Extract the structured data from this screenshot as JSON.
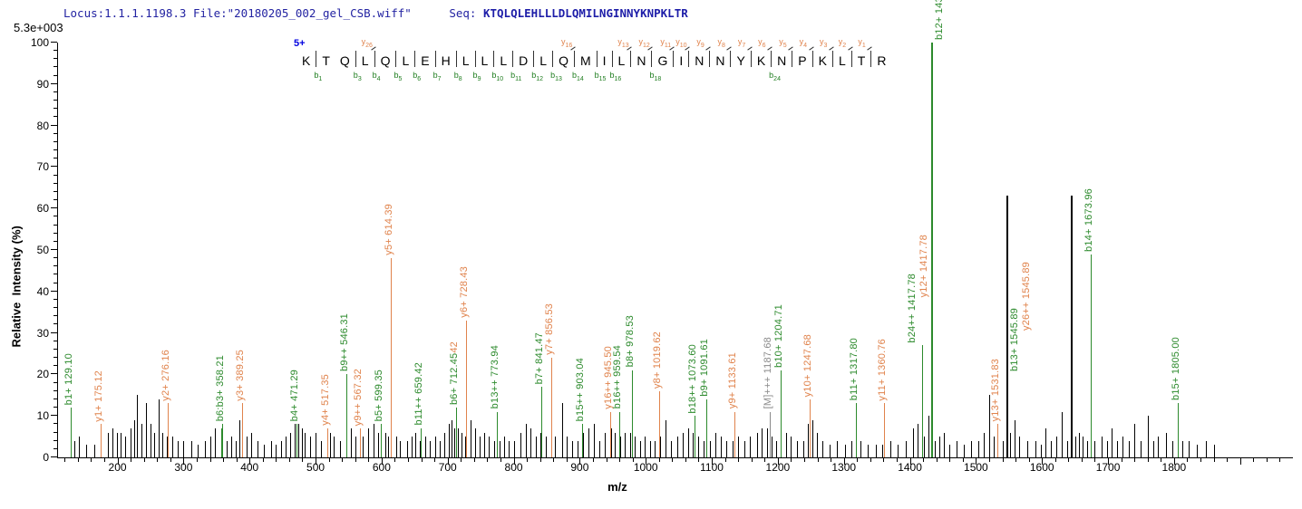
{
  "header": {
    "locus_file": "Locus:1.1.1.1198.3 File:\"20180205_002_gel_CSB.wiff\"",
    "seq_label": "Seq:",
    "seq_value": "KTQLQLEHLLLDLQMILNGINNYKNPKLTR",
    "intensity_scale": "5.3e+003"
  },
  "sequence_panel": {
    "charge": "5+",
    "residues": "KTQLQLEHLLLDLQMILNGINNYKNPKLTR",
    "boundaries": [
      {
        "after": 1,
        "b": "b1"
      },
      {
        "after": 3,
        "b": "b3"
      },
      {
        "after": 4,
        "b": "b4",
        "y": "y26"
      },
      {
        "after": 5,
        "b": "b5"
      },
      {
        "after": 6,
        "b": "b6"
      },
      {
        "after": 7,
        "b": "b7"
      },
      {
        "after": 8,
        "b": "b8"
      },
      {
        "after": 9,
        "b": "b9"
      },
      {
        "after": 10,
        "b": "b10"
      },
      {
        "after": 11,
        "b": "b11"
      },
      {
        "after": 12,
        "b": "b12"
      },
      {
        "after": 13,
        "b": "b13"
      },
      {
        "after": 14,
        "b": "b14",
        "y": "y16"
      },
      {
        "after": 15,
        "b": "b15"
      },
      {
        "after": 16,
        "b": "b16"
      },
      {
        "after": 17,
        "y": "y13"
      },
      {
        "after": 18,
        "b": "b18",
        "y": "y12"
      },
      {
        "after": 19,
        "y": "y11"
      },
      {
        "after": 20,
        "y": "y10"
      },
      {
        "after": 21,
        "y": "y9"
      },
      {
        "after": 22,
        "y": "y8"
      },
      {
        "after": 23,
        "y": "y7"
      },
      {
        "after": 24,
        "b": "b24",
        "y": "y6"
      },
      {
        "after": 25,
        "y": "y5"
      },
      {
        "after": 26,
        "y": "y4"
      },
      {
        "after": 27,
        "y": "y3"
      },
      {
        "after": 28,
        "y": "y2"
      },
      {
        "after": 29,
        "y": "y1"
      }
    ]
  },
  "chart_data": {
    "type": "bar",
    "subtype": "ms2-fragmentation-spectrum",
    "xlabel": "m/z",
    "ylabel": "Relative  Intensity (%)",
    "intensity_scale_note": "5.3e+003",
    "xlim": [
      110,
      1980
    ],
    "ylim": [
      0,
      100
    ],
    "x_major_step": 100,
    "x_minor_step": 20,
    "x_label_min": 200,
    "x_label_max": 1800,
    "y_major_step": 10,
    "y_minor_step": 2,
    "grid": false,
    "colors": {
      "b": "#2c8a2c",
      "y": "#e0834c",
      "gray": "#8a8a8a",
      "black": "#000000"
    },
    "labeled_peaks": [
      {
        "mz": 129.1,
        "intensity": 12,
        "color": "b",
        "labels": [
          {
            "text": "b1+ 129.10",
            "color": "b"
          }
        ]
      },
      {
        "mz": 175.12,
        "intensity": 8,
        "color": "y",
        "labels": [
          {
            "text": "y1+ 175.12",
            "color": "y"
          }
        ]
      },
      {
        "mz": 276.16,
        "intensity": 13,
        "color": "y",
        "labels": [
          {
            "text": "y2+ 276.16",
            "color": "y"
          }
        ]
      },
      {
        "mz": 356.73,
        "intensity": 7,
        "color": "b",
        "labels": []
      },
      {
        "mz": 358.21,
        "intensity": 8,
        "color": "b",
        "labels": [
          {
            "text": "b6:b3+ 358.21",
            "color": "b"
          }
        ]
      },
      {
        "mz": 389.25,
        "intensity": 13,
        "color": "y",
        "labels": [
          {
            "text": "y3+ 389.25",
            "color": "y"
          }
        ]
      },
      {
        "mz": 471.29,
        "intensity": 8,
        "color": "b",
        "labels": [
          {
            "text": "b4+ 471.29",
            "color": "b"
          }
        ]
      },
      {
        "mz": 517.35,
        "intensity": 7,
        "color": "y",
        "labels": [
          {
            "text": "y4+ 517.35",
            "color": "y"
          }
        ]
      },
      {
        "mz": 546.31,
        "intensity": 20,
        "color": "b",
        "labels": [
          {
            "text": "b9++ 546.31",
            "color": "b"
          }
        ]
      },
      {
        "mz": 567.32,
        "intensity": 7,
        "color": "y",
        "labels": [
          {
            "text": "y9++ 567.32",
            "color": "y"
          }
        ]
      },
      {
        "mz": 599.35,
        "intensity": 8,
        "color": "b",
        "labels": [
          {
            "text": "b5+ 599.35",
            "color": "b"
          }
        ]
      },
      {
        "mz": 614.39,
        "intensity": 48,
        "color": "y",
        "labels": [
          {
            "text": "y5+ 614.39",
            "color": "y"
          }
        ]
      },
      {
        "mz": 659.42,
        "intensity": 7,
        "color": "b",
        "labels": [
          {
            "text": "b11++ 659.42",
            "color": "b"
          }
        ]
      },
      {
        "mz": 712.45,
        "intensity": 12,
        "color": "b",
        "labels": [
          {
            "text": "b6+ 712.45",
            "color": "b",
            "suffix": "42",
            "suffix_color": "y"
          }
        ]
      },
      {
        "mz": 728.43,
        "intensity": 33,
        "color": "y",
        "labels": [
          {
            "text": "y6+ 728.43",
            "color": "y"
          }
        ]
      },
      {
        "mz": 773.94,
        "intensity": 11,
        "color": "b",
        "labels": [
          {
            "text": "b13++ 773.94",
            "color": "b"
          }
        ]
      },
      {
        "mz": 841.47,
        "intensity": 17,
        "color": "b",
        "labels": [
          {
            "text": "b7+ 841.47",
            "color": "b"
          }
        ]
      },
      {
        "mz": 856.53,
        "intensity": 24,
        "color": "y",
        "labels": [
          {
            "text": "y7+ 856.53",
            "color": "y"
          }
        ]
      },
      {
        "mz": 903.04,
        "intensity": 8,
        "color": "b",
        "labels": [
          {
            "text": "b15++ 903.04",
            "color": "b"
          }
        ]
      },
      {
        "mz": 945.5,
        "intensity": 11,
        "color": "y",
        "labels": [
          {
            "text": "y16++ 945.50",
            "color": "y"
          }
        ]
      },
      {
        "mz": 959.54,
        "intensity": 11,
        "color": "b",
        "labels": [
          {
            "text": "b16++ 959.54",
            "color": "b"
          }
        ]
      },
      {
        "mz": 978.53,
        "intensity": 21,
        "color": "b",
        "labels": [
          {
            "text": "b8+ 978.53",
            "color": "b"
          }
        ]
      },
      {
        "mz": 1019.62,
        "intensity": 16,
        "color": "y",
        "labels": [
          {
            "text": "y8+ 1019.62",
            "color": "y"
          }
        ]
      },
      {
        "mz": 1073.6,
        "intensity": 10,
        "color": "b",
        "labels": [
          {
            "text": "b18++ 1073.60",
            "color": "b"
          }
        ]
      },
      {
        "mz": 1091.61,
        "intensity": 14,
        "color": "b",
        "labels": [
          {
            "text": "b9+ 1091.61",
            "color": "b"
          }
        ]
      },
      {
        "mz": 1133.61,
        "intensity": 11,
        "color": "y",
        "labels": [
          {
            "text": "y9+ 1133.61",
            "color": "y"
          }
        ]
      },
      {
        "mz": 1187.68,
        "intensity": 11,
        "color": "gray",
        "labels": [
          {
            "text": "[M]+++ 1187.68",
            "color": "gray"
          }
        ]
      },
      {
        "mz": 1204.71,
        "intensity": 21,
        "color": "b",
        "labels": [
          {
            "text": "b10+ 1204.71",
            "color": "b"
          }
        ]
      },
      {
        "mz": 1247.68,
        "intensity": 14,
        "color": "y",
        "labels": [
          {
            "text": "y10+ 1247.68",
            "color": "y"
          }
        ]
      },
      {
        "mz": 1317.8,
        "intensity": 13,
        "color": "b",
        "labels": [
          {
            "text": "b11+ 1317.80",
            "color": "b"
          }
        ]
      },
      {
        "mz": 1360.76,
        "intensity": 13,
        "color": "y",
        "labels": [
          {
            "text": "y11+ 1360.76",
            "color": "y"
          }
        ]
      },
      {
        "mz": 1417.78,
        "intensity": 27,
        "color": "b",
        "labels": [
          {
            "text": "b24++ 1417.78",
            "color": "b",
            "dx": -17
          },
          {
            "text": "y12+ 1417.78",
            "color": "y",
            "dx": -4,
            "base": 38
          }
        ]
      },
      {
        "mz": 1432.81,
        "intensity": 100,
        "color": "b",
        "labels": [
          {
            "text": "b12+ 1432.81",
            "color": "b",
            "dx": 3
          }
        ]
      },
      {
        "mz": 1531.83,
        "intensity": 8,
        "color": "y",
        "labels": [
          {
            "text": "y13+ 1531.83",
            "color": "y"
          }
        ]
      },
      {
        "mz": 1545.89,
        "intensity": 63,
        "color": "black",
        "labels": [
          {
            "text": "b13+ 1545.89",
            "color": "b",
            "dx": 3,
            "base": 20
          },
          {
            "text": "y26++ 1545.89",
            "color": "y",
            "dx": 16,
            "base": 30
          }
        ]
      },
      {
        "mz": 1644.0,
        "intensity": 63,
        "color": "black",
        "labels": []
      },
      {
        "mz": 1673.96,
        "intensity": 49,
        "color": "b",
        "labels": [
          {
            "text": "b14+ 1673.96",
            "color": "b"
          }
        ]
      },
      {
        "mz": 1805.0,
        "intensity": 13,
        "color": "b",
        "labels": [
          {
            "text": "b15+ 1805.00",
            "color": "b"
          }
        ]
      }
    ],
    "noise_peaks": [
      [
        135,
        4
      ],
      [
        141,
        5
      ],
      [
        152,
        3
      ],
      [
        165,
        3
      ],
      [
        186,
        6
      ],
      [
        193,
        7
      ],
      [
        199,
        6
      ],
      [
        205,
        6
      ],
      [
        212,
        5
      ],
      [
        220,
        7
      ],
      [
        226,
        9
      ],
      [
        230,
        15
      ],
      [
        237,
        8
      ],
      [
        243,
        13
      ],
      [
        250,
        8
      ],
      [
        256,
        6
      ],
      [
        262,
        14
      ],
      [
        268,
        6
      ],
      [
        275,
        5
      ],
      [
        283,
        5
      ],
      [
        291,
        4
      ],
      [
        300,
        4
      ],
      [
        312,
        4
      ],
      [
        322,
        3
      ],
      [
        333,
        4
      ],
      [
        341,
        5
      ],
      [
        348,
        7
      ],
      [
        365,
        4
      ],
      [
        372,
        5
      ],
      [
        379,
        4
      ],
      [
        385,
        9
      ],
      [
        395,
        5
      ],
      [
        403,
        6
      ],
      [
        412,
        4
      ],
      [
        421,
        3
      ],
      [
        432,
        4
      ],
      [
        440,
        3
      ],
      [
        448,
        4
      ],
      [
        455,
        5
      ],
      [
        462,
        6
      ],
      [
        468,
        8
      ],
      [
        474,
        8
      ],
      [
        479,
        7
      ],
      [
        484,
        6
      ],
      [
        492,
        5
      ],
      [
        500,
        6
      ],
      [
        508,
        4
      ],
      [
        522,
        6
      ],
      [
        528,
        5
      ],
      [
        537,
        4
      ],
      [
        553,
        7
      ],
      [
        560,
        5
      ],
      [
        572,
        5
      ],
      [
        580,
        7
      ],
      [
        588,
        8
      ],
      [
        594,
        6
      ],
      [
        605,
        6
      ],
      [
        610,
        5
      ],
      [
        622,
        5
      ],
      [
        628,
        4
      ],
      [
        638,
        4
      ],
      [
        645,
        5
      ],
      [
        651,
        6
      ],
      [
        658,
        4
      ],
      [
        666,
        5
      ],
      [
        673,
        4
      ],
      [
        681,
        5
      ],
      [
        688,
        4
      ],
      [
        695,
        6
      ],
      [
        702,
        8
      ],
      [
        706,
        9
      ],
      [
        710,
        7
      ],
      [
        716,
        7
      ],
      [
        721,
        6
      ],
      [
        726,
        5
      ],
      [
        735,
        9
      ],
      [
        741,
        7
      ],
      [
        748,
        5
      ],
      [
        755,
        6
      ],
      [
        762,
        5
      ],
      [
        770,
        4
      ],
      [
        778,
        4
      ],
      [
        786,
        5
      ],
      [
        793,
        4
      ],
      [
        801,
        4
      ],
      [
        810,
        6
      ],
      [
        818,
        8
      ],
      [
        825,
        7
      ],
      [
        833,
        5
      ],
      [
        840,
        6
      ],
      [
        848,
        5
      ],
      [
        862,
        5
      ],
      [
        873,
        13
      ],
      [
        880,
        5
      ],
      [
        889,
        4
      ],
      [
        897,
        4
      ],
      [
        905,
        6
      ],
      [
        913,
        7
      ],
      [
        921,
        8
      ],
      [
        930,
        4
      ],
      [
        938,
        6
      ],
      [
        947,
        7
      ],
      [
        953,
        6
      ],
      [
        961,
        5
      ],
      [
        968,
        6
      ],
      [
        976,
        6
      ],
      [
        983,
        5
      ],
      [
        991,
        4
      ],
      [
        999,
        5
      ],
      [
        1007,
        4
      ],
      [
        1014,
        4
      ],
      [
        1022,
        5
      ],
      [
        1030,
        9
      ],
      [
        1038,
        4
      ],
      [
        1048,
        5
      ],
      [
        1056,
        6
      ],
      [
        1064,
        7
      ],
      [
        1071,
        6
      ],
      [
        1079,
        5
      ],
      [
        1087,
        4
      ],
      [
        1097,
        4
      ],
      [
        1105,
        6
      ],
      [
        1113,
        5
      ],
      [
        1122,
        4
      ],
      [
        1131,
        4
      ],
      [
        1140,
        5
      ],
      [
        1149,
        4
      ],
      [
        1158,
        5
      ],
      [
        1168,
        6
      ],
      [
        1176,
        7
      ],
      [
        1183,
        7
      ],
      [
        1190,
        5
      ],
      [
        1198,
        4
      ],
      [
        1212,
        6
      ],
      [
        1220,
        5
      ],
      [
        1229,
        4
      ],
      [
        1238,
        4
      ],
      [
        1245,
        8
      ],
      [
        1252,
        9
      ],
      [
        1259,
        6
      ],
      [
        1268,
        4
      ],
      [
        1278,
        3
      ],
      [
        1290,
        4
      ],
      [
        1302,
        3
      ],
      [
        1312,
        4
      ],
      [
        1325,
        4
      ],
      [
        1336,
        3
      ],
      [
        1348,
        3
      ],
      [
        1358,
        3
      ],
      [
        1371,
        4
      ],
      [
        1382,
        3
      ],
      [
        1394,
        4
      ],
      [
        1405,
        7
      ],
      [
        1412,
        8
      ],
      [
        1421,
        5
      ],
      [
        1428,
        10
      ],
      [
        1437,
        4
      ],
      [
        1445,
        5
      ],
      [
        1452,
        6
      ],
      [
        1460,
        3
      ],
      [
        1470,
        4
      ],
      [
        1482,
        3
      ],
      [
        1493,
        4
      ],
      [
        1504,
        4
      ],
      [
        1512,
        6
      ],
      [
        1520,
        15
      ],
      [
        1527,
        5
      ],
      [
        1540,
        4
      ],
      [
        1552,
        6
      ],
      [
        1558,
        9
      ],
      [
        1566,
        5
      ],
      [
        1578,
        4
      ],
      [
        1590,
        4
      ],
      [
        1598,
        3
      ],
      [
        1605,
        7
      ],
      [
        1613,
        4
      ],
      [
        1622,
        5
      ],
      [
        1630,
        11
      ],
      [
        1638,
        4
      ],
      [
        1650,
        5
      ],
      [
        1656,
        6
      ],
      [
        1662,
        5
      ],
      [
        1668,
        4
      ],
      [
        1680,
        4
      ],
      [
        1690,
        5
      ],
      [
        1698,
        4
      ],
      [
        1705,
        7
      ],
      [
        1713,
        4
      ],
      [
        1722,
        5
      ],
      [
        1731,
        4
      ],
      [
        1740,
        8
      ],
      [
        1749,
        4
      ],
      [
        1760,
        10
      ],
      [
        1768,
        4
      ],
      [
        1776,
        5
      ],
      [
        1788,
        6
      ],
      [
        1797,
        4
      ],
      [
        1812,
        4
      ],
      [
        1822,
        4
      ],
      [
        1835,
        3
      ],
      [
        1848,
        4
      ],
      [
        1860,
        3
      ]
    ]
  }
}
